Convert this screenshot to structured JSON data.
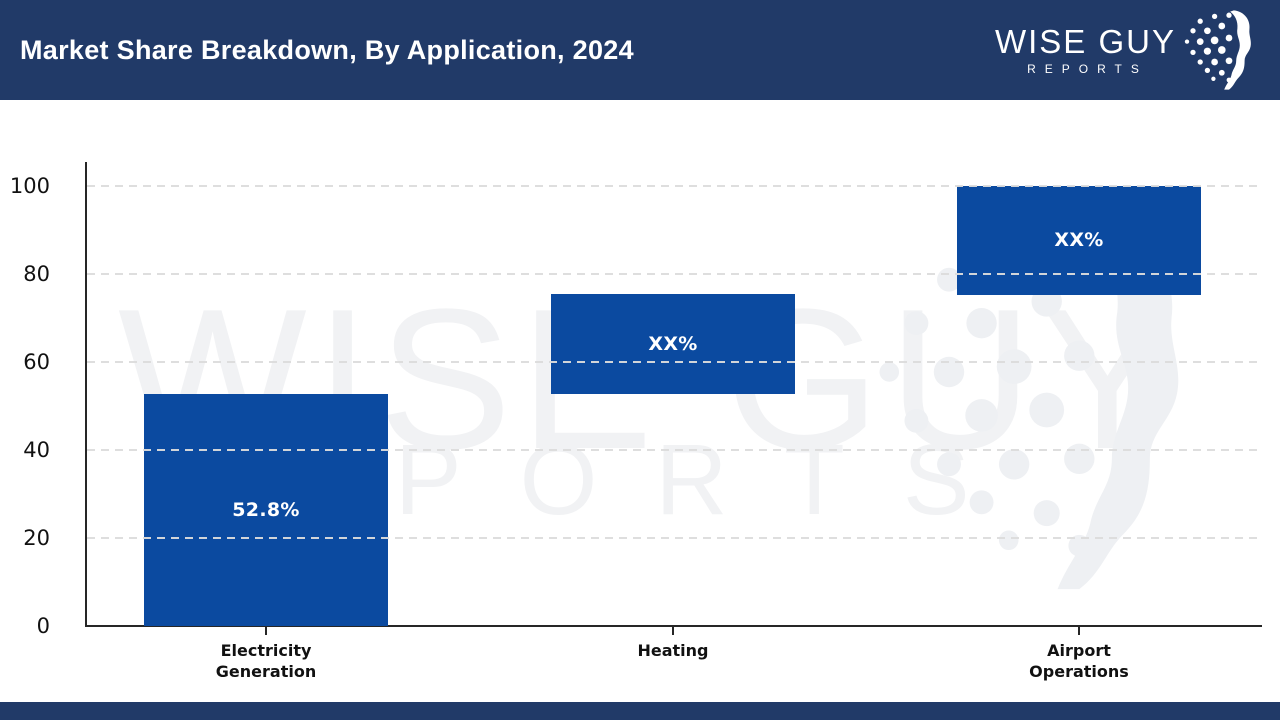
{
  "header": {
    "title": "Market Share Breakdown, By Application, 2024",
    "logo": {
      "wordmark": "WISE GUY",
      "subtext": "REPORTS"
    },
    "bg_color": "#213A68"
  },
  "footer": {
    "bg_color": "#213A68"
  },
  "watermark": {
    "line1": "WISE GUY",
    "line2": "REPORTS"
  },
  "chart_data": {
    "type": "bar",
    "subtype": "floating-waterfall",
    "title": "Market Share Breakdown, By Application, 2024",
    "categories": [
      "Electricity Generation",
      "Heating",
      "Airport Operations"
    ],
    "series": [
      {
        "name": "Market Share %",
        "segments": [
          {
            "category": "Electricity Generation",
            "start": 0,
            "end": 52.8,
            "label": "52.8%"
          },
          {
            "category": "Heating",
            "start": 52.8,
            "end": 75.5,
            "label": "XX%"
          },
          {
            "category": "Airport Operations",
            "start": 75.3,
            "end": 100,
            "label": "XX%"
          }
        ]
      }
    ],
    "ylim": [
      0,
      100
    ],
    "yticks": [
      0,
      20,
      40,
      60,
      80,
      100
    ],
    "grid": "horizontal-dashed",
    "grid_color": "#DCDCDC",
    "bar_color": "#0B4AA0",
    "bar_label_color": "#ffffff",
    "axis_color": "#262626",
    "legend": "none"
  }
}
